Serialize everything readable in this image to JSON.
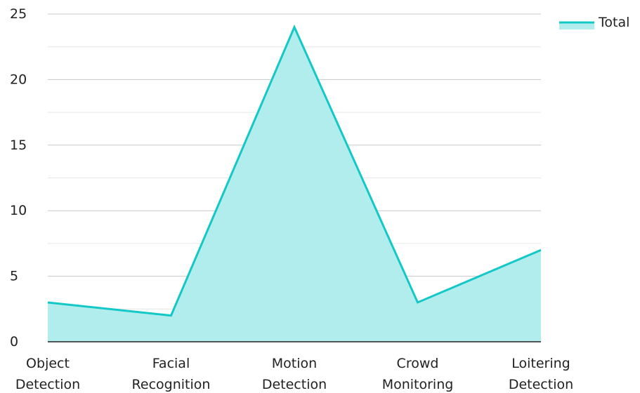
{
  "chart_data": {
    "type": "area",
    "categories": [
      [
        "Object",
        "Detection"
      ],
      [
        "Facial",
        "Recognition"
      ],
      [
        "Motion",
        "Detection"
      ],
      [
        "Crowd",
        "Monitoring"
      ],
      [
        "Loitering",
        "Detection"
      ]
    ],
    "series": [
      {
        "name": "Total",
        "values": [
          3,
          2,
          24,
          3,
          7
        ]
      }
    ],
    "ylim": [
      0,
      25
    ],
    "yticks": [
      0,
      5,
      10,
      15,
      20,
      25
    ],
    "grid": true,
    "legend_position": "top-right",
    "colors": {
      "line": "#14C8C8",
      "fill": "#B2EDED",
      "grid_major": "#C8C8C8",
      "grid_minor": "#E6E6E6",
      "axis": "#222222"
    }
  }
}
